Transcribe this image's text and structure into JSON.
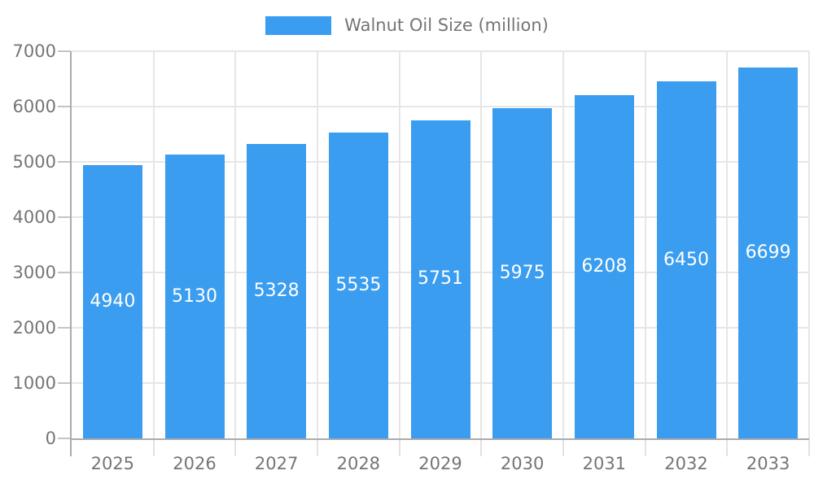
{
  "legend": {
    "label": "Walnut Oil Size (million)"
  },
  "colors": {
    "bar": "#3b9def",
    "grid": "#e6e6e6",
    "axis": "#ababab",
    "tick_y": "#c4c4c4",
    "tick_x": "#e2e2e2",
    "text": "#757575",
    "value_label": "#ffffff",
    "background": "#ffffff"
  },
  "chart_data": {
    "type": "bar",
    "title": "Walnut Oil Size (million)",
    "xlabel": "",
    "ylabel": "",
    "categories": [
      "2025",
      "2026",
      "2027",
      "2028",
      "2029",
      "2030",
      "2031",
      "2032",
      "2033"
    ],
    "series": [
      {
        "name": "Walnut Oil Size (million)",
        "values": [
          4940,
          5130,
          5328,
          5535,
          5751,
          5975,
          6208,
          6450,
          6699
        ]
      }
    ],
    "ylim": [
      0,
      7000
    ],
    "yticks": [
      0,
      1000,
      2000,
      3000,
      4000,
      5000,
      6000,
      7000
    ],
    "grid": "on",
    "legend_position": "top-center",
    "value_labels": "inside-middle-white"
  }
}
